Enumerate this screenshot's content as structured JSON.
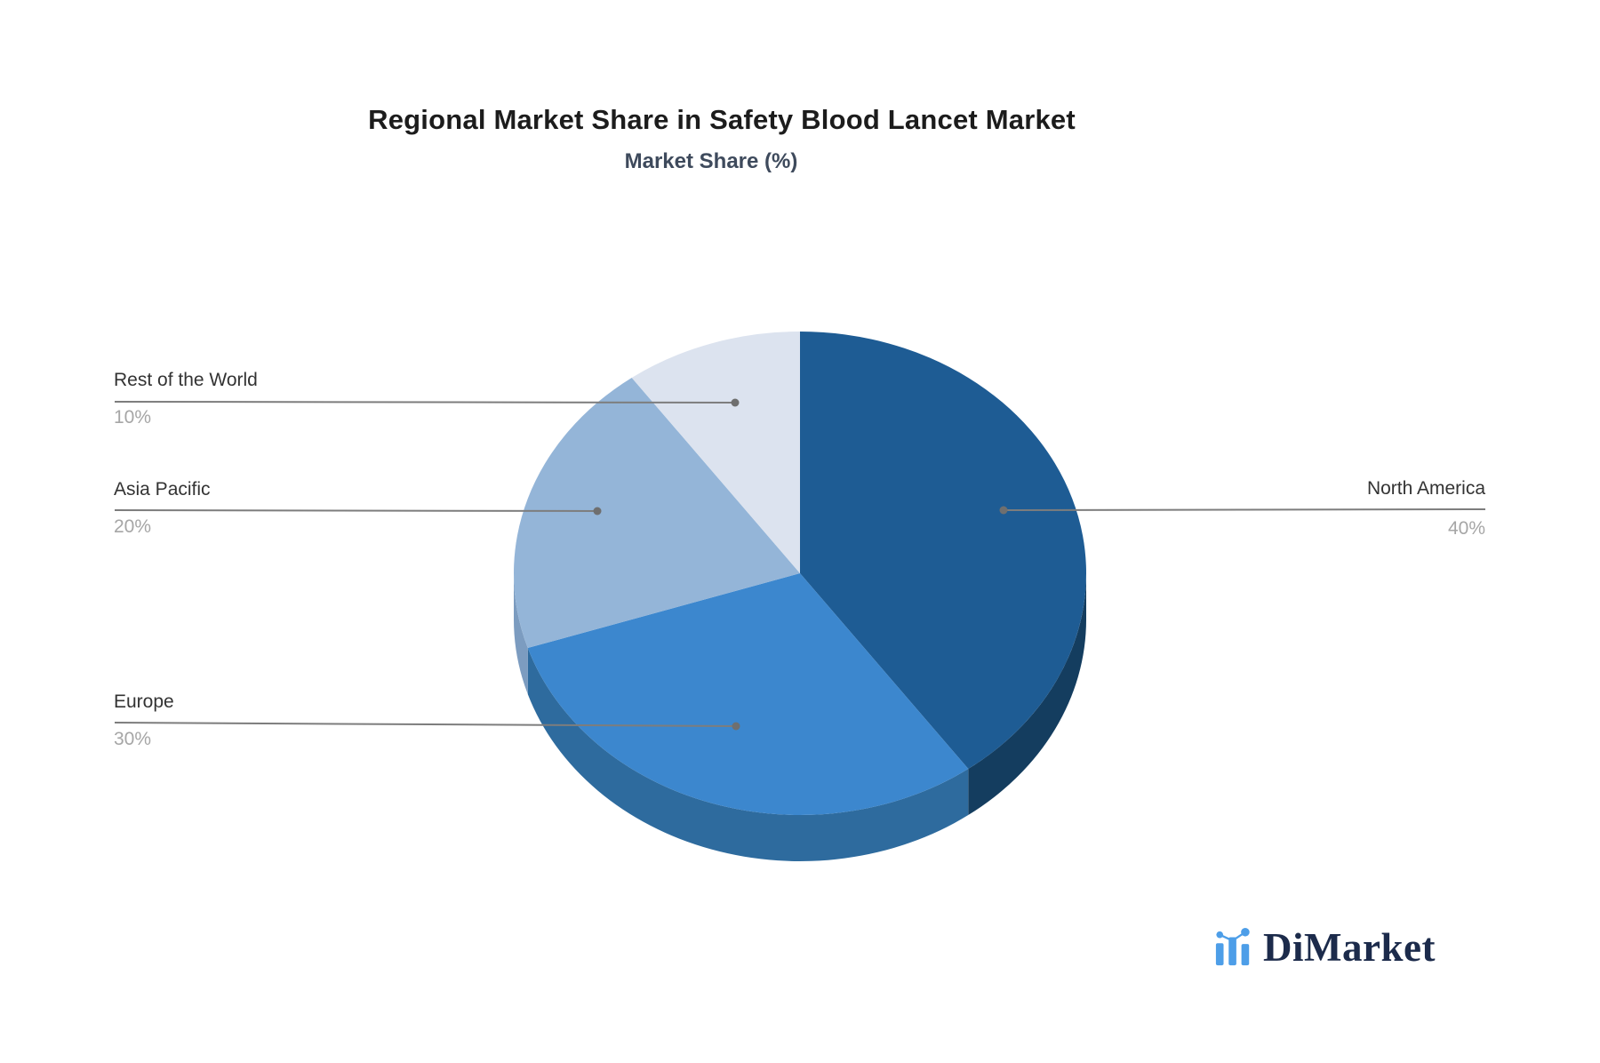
{
  "page": {
    "title": "Regional Market Share in Safety Blood Lancet Market",
    "subtitle": "Market Share (%)"
  },
  "brand": {
    "name": "DiMarket"
  },
  "chart_data": {
    "type": "pie",
    "style": "3d",
    "title": "Regional Market Share in Safety Blood Lancet Market",
    "subtitle": "Market Share (%)",
    "unit": "%",
    "start_angle_deg": 0,
    "direction": "clockwise",
    "legend_position": "none",
    "slices": [
      {
        "label": "North America",
        "value": 40,
        "pct_text": "40%",
        "color": "#1E5C94",
        "side_color": "#143D5F",
        "label_side": "right"
      },
      {
        "label": "Europe",
        "value": 30,
        "pct_text": "30%",
        "color": "#3C87CE",
        "side_color": "#2E6B9E",
        "label_side": "left"
      },
      {
        "label": "Asia Pacific",
        "value": 20,
        "pct_text": "20%",
        "color": "#94B5D8",
        "side_color": "#7C9CC0",
        "label_side": "left"
      },
      {
        "label": "Rest of the World",
        "value": 10,
        "pct_text": "10%",
        "color": "#DCE3EF",
        "side_color": "#B9C6DA",
        "label_side": "left"
      }
    ],
    "label_color": "#333333",
    "pct_color": "#A6A6A6",
    "leader_line_color": "#7D7D7D",
    "leader_dot_color": "#6F6F6F"
  }
}
